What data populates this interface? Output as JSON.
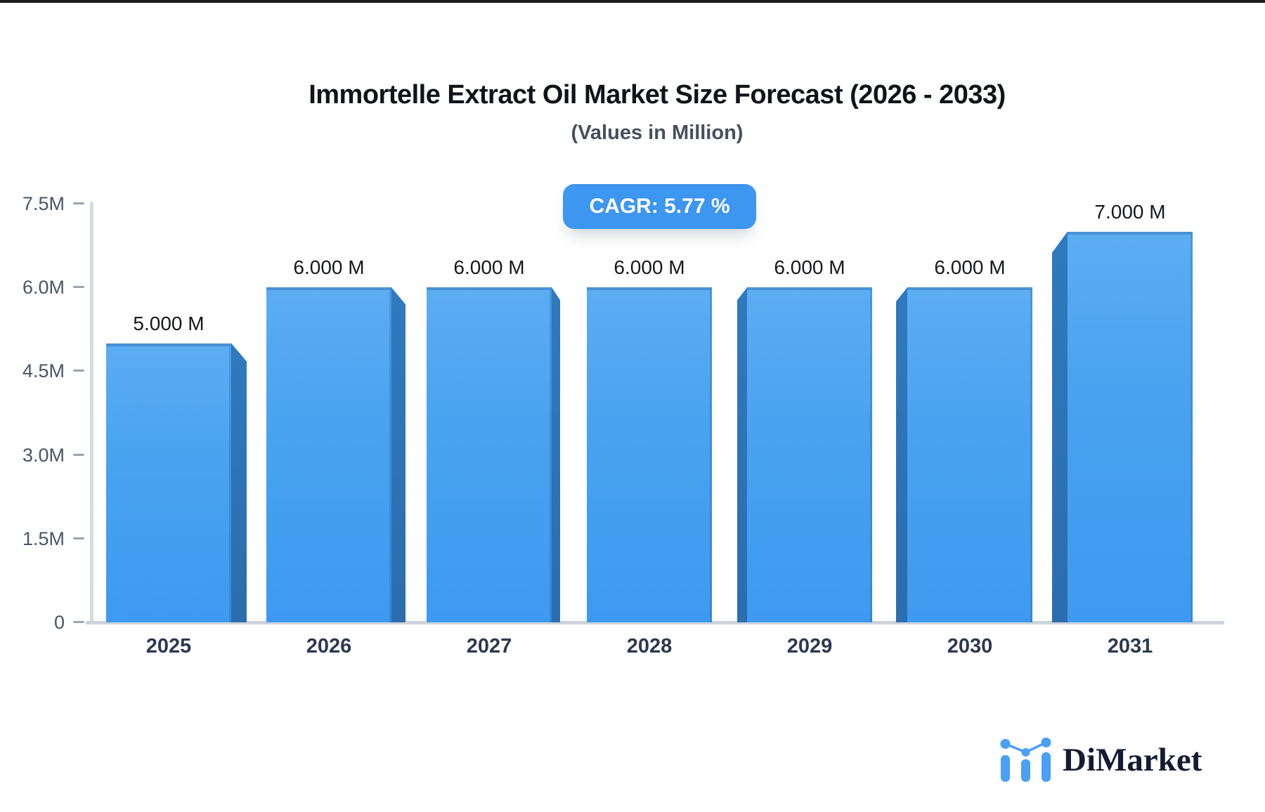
{
  "header": {
    "title": "Immortelle Extract Oil Market Size Forecast (2026 - 2033)",
    "subtitle": "(Values in Million)",
    "cagr_badge": "CAGR: 5.77 %"
  },
  "chart_data": {
    "type": "bar",
    "title": "Immortelle Extract Oil Market Size Forecast (2026 - 2033)",
    "subtitle": "(Values in Million)",
    "units_note": "Values in Million",
    "cagr_percent": 5.77,
    "categories": [
      "2025",
      "2026",
      "2027",
      "2028",
      "2029",
      "2030",
      "2031"
    ],
    "values": [
      5.0,
      6.0,
      6.0,
      6.0,
      6.0,
      6.0,
      7.0
    ],
    "value_labels": [
      "5.000 M",
      "6.000 M",
      "6.000 M",
      "6.000 M",
      "6.000 M",
      "6.000 M",
      "7.000 M"
    ],
    "xlabel": "",
    "ylabel": "",
    "ylim": [
      0,
      7.5
    ],
    "yticks": [
      "7.5M",
      "6.0M",
      "4.5M",
      "3.0M",
      "1.5M",
      "0"
    ],
    "ytick_values": [
      7.5,
      6.0,
      4.5,
      3.0,
      1.5,
      0
    ],
    "grid": false,
    "legend": "none",
    "bar_face_color": "#459ff0",
    "bar_side_color": "#2e75b9"
  },
  "branding": {
    "logo_text": "DiMarket",
    "logo_icon": "mini-bar-line-chart-icon",
    "logo_blue": "#4aa0f5",
    "logo_text_color": "#141b33"
  },
  "colors": {
    "accent_blue": "#3d96ef",
    "axis_line": "#d3d7de",
    "tick_label_color": "#4a5568",
    "category_label_color": "#2c3950",
    "value_label_color": "#16181c",
    "title_color": "#101418",
    "subtitle_color": "#474f5c",
    "background": "#ffffff"
  }
}
